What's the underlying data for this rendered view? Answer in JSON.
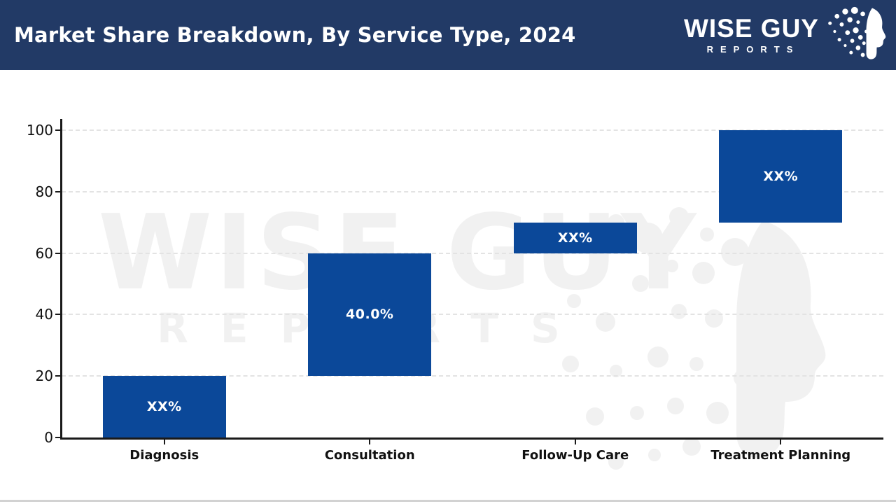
{
  "header": {
    "title": "Market Share Breakdown, By Service Type, 2024",
    "background": "#223a66",
    "logo": {
      "line1": "WISE GUY",
      "line2": "REPORTS"
    }
  },
  "watermark": {
    "line1": "WISE GUY",
    "line2": "REPORTS"
  },
  "chart_data": {
    "type": "bar",
    "subtype": "waterfall",
    "title": "Market Share Breakdown, By Service Type, 2024",
    "xlabel": "",
    "ylabel": "",
    "categories": [
      "Diagnosis",
      "Consultation",
      "Follow-Up Care",
      "Treatment Planning"
    ],
    "segments": [
      {
        "category": "Diagnosis",
        "start": 0,
        "end": 20,
        "label": "XX%"
      },
      {
        "category": "Consultation",
        "start": 20,
        "end": 60,
        "label": "40.0%"
      },
      {
        "category": "Follow-Up Care",
        "start": 60,
        "end": 70,
        "label": "XX%"
      },
      {
        "category": "Treatment Planning",
        "start": 70,
        "end": 100,
        "label": "XX%"
      }
    ],
    "y_ticks": [
      0,
      20,
      40,
      60,
      80,
      100
    ],
    "ylim": [
      0,
      100
    ],
    "grid": "horizontal-dashed",
    "legend": "none",
    "bar_color": "#0b4899",
    "bar_label_color": "#ffffff",
    "axis_color": "#1a1a1a",
    "gridline_color": "#e3e3e3"
  }
}
